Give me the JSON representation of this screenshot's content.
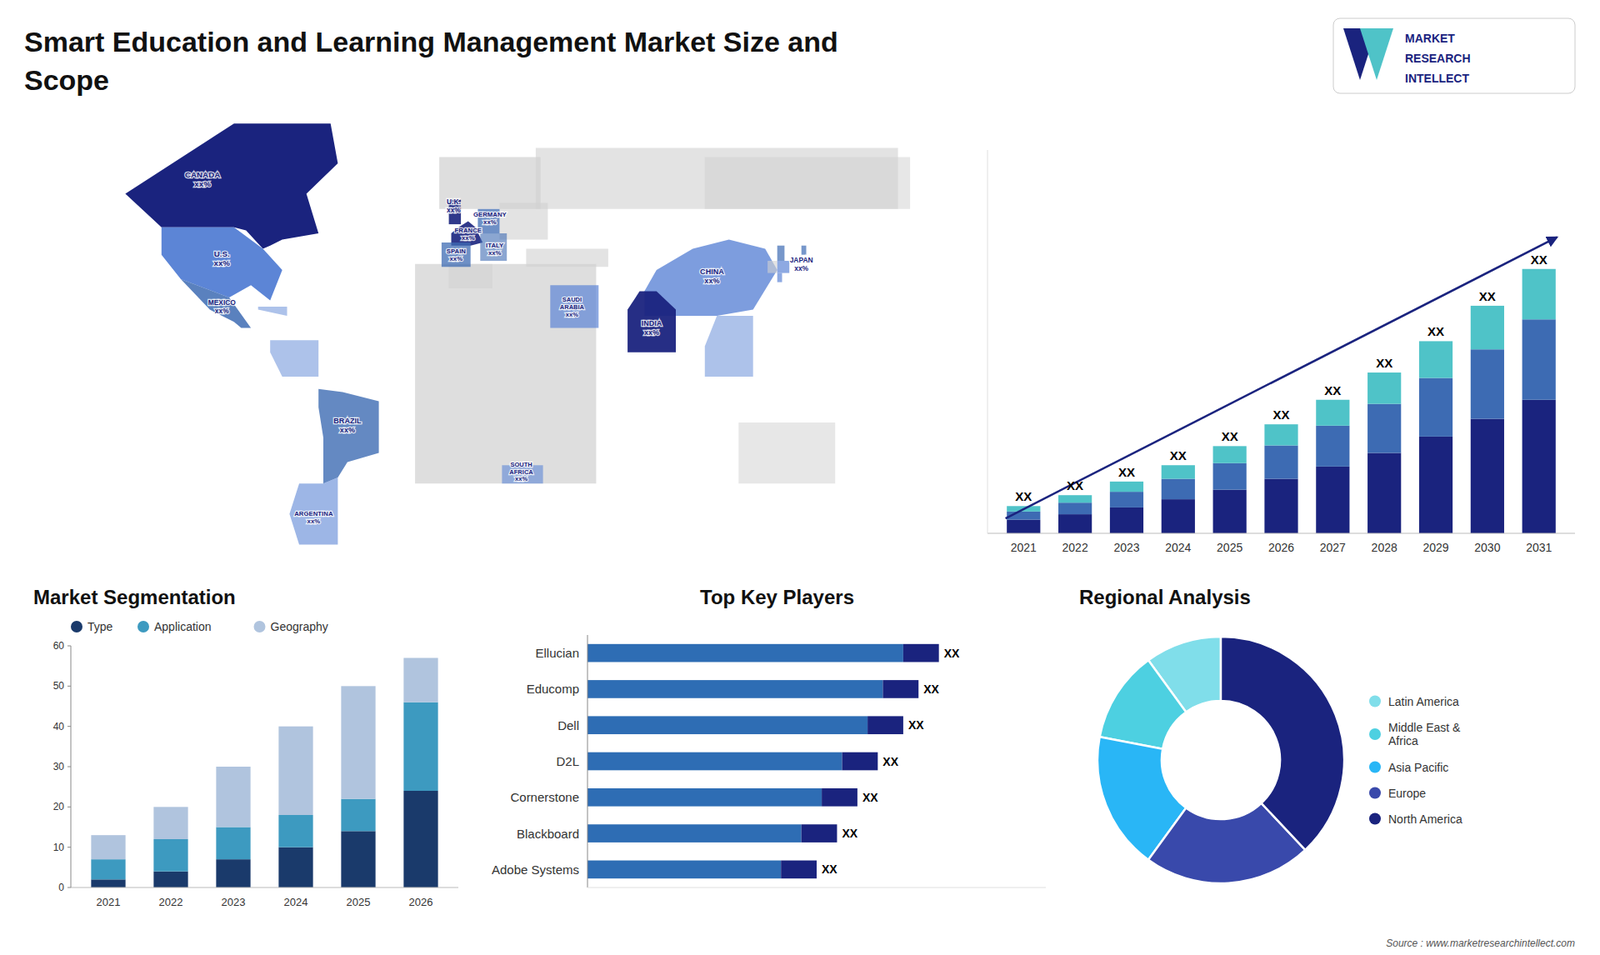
{
  "title": "Smart Education and Learning Management Market Size and\nScope",
  "annotations": [
    "MARKET",
    "RESEARCH",
    "INTELLECT",
    "Source : www.marketresearchintellect.com"
  ],
  "chart_data": [
    {
      "type": "map",
      "annotations": [
        "CANADA\nxx%",
        "U.S.\nxx%",
        "MEXICO\nxx%",
        "BRAZIL\nxx%",
        "ARGENTINA\nxx%",
        "U.K.\nxx%",
        "FRANCE\nxx%",
        "SPAIN\nxx%",
        "GERMANY\nxx%",
        "ITALY\nxx%",
        "SAUDI\nARABIA\nxx%",
        "SOUTH\nAFRICA\nxx%",
        "CHINA\nxx%",
        "INDIA\nxx%",
        "JAPAN\nxx%"
      ]
    },
    {
      "type": "bar",
      "stacked": true,
      "categories": [
        "2021",
        "2022",
        "2023",
        "2024",
        "2025",
        "2026",
        "2027",
        "2028",
        "2029",
        "2030",
        "2031"
      ],
      "series": [
        {
          "color": "#1a237e",
          "values": [
            1.0,
            1.4,
            1.9,
            2.5,
            3.2,
            4.0,
            4.9,
            5.9,
            7.1,
            8.4,
            9.8
          ]
        },
        {
          "color": "#3d6bb3",
          "values": [
            0.6,
            0.85,
            1.15,
            1.5,
            1.95,
            2.45,
            3.0,
            3.6,
            4.3,
            5.1,
            5.9
          ]
        },
        {
          "color": "#4fc3c8",
          "values": [
            0.4,
            0.55,
            0.75,
            1.0,
            1.25,
            1.55,
            1.9,
            2.3,
            2.7,
            3.2,
            3.7
          ]
        }
      ],
      "ylim": [
        0,
        28.13
      ],
      "tick_labels": "x",
      "grid": false,
      "annotations": [
        "XX",
        "XX",
        "XX",
        "XX",
        "XX",
        "XX",
        "XX",
        "XX",
        "XX",
        "XX",
        "XX"
      ]
    },
    {
      "type": "bar",
      "stacked": true,
      "title": "Market Segmentation",
      "categories": [
        "2021",
        "2022",
        "2023",
        "2024",
        "2025",
        "2026"
      ],
      "series": [
        {
          "name": "Type",
          "color": "#1a3a6b",
          "values": [
            2,
            4,
            7,
            10,
            14,
            24
          ]
        },
        {
          "name": "Application",
          "color": "#3d9ac0",
          "values": [
            5,
            8,
            8,
            8,
            8,
            22
          ]
        },
        {
          "name": "Geography",
          "color": "#b0c4de",
          "values": [
            6,
            8,
            15,
            22,
            28,
            11
          ]
        }
      ],
      "ylim": [
        0,
        60
      ],
      "yticks": [
        0,
        10,
        20,
        30,
        40,
        50,
        60
      ],
      "legend": "top",
      "grid": false
    },
    {
      "type": "bar",
      "orientation": "horizontal",
      "stacked": true,
      "title": "Top Key Players",
      "categories": [
        "Ellucian",
        "Educomp",
        "Dell",
        "D2L",
        "Cornerstone",
        "Blackboard",
        "Adobe Systems"
      ],
      "series": [
        {
          "color": "#2e6db4",
          "values": [
            0.62,
            0.58,
            0.55,
            0.5,
            0.46,
            0.42,
            0.38
          ]
        },
        {
          "color": "#1a237e",
          "values": [
            0.07,
            0.07,
            0.07,
            0.07,
            0.07,
            0.07,
            0.07
          ]
        }
      ],
      "xlim": [
        0,
        0.9
      ],
      "tick_labels": "y",
      "grid": false,
      "annotations": [
        "XX",
        "XX",
        "XX",
        "XX",
        "XX",
        "XX",
        "XX"
      ]
    },
    {
      "type": "donut",
      "title": "Regional Analysis",
      "categories": [
        "Latin America",
        "Middle East &\nAfrica",
        "Asia Pacific",
        "Europe",
        "North America"
      ],
      "values": [
        10,
        12,
        18,
        22,
        38
      ],
      "colors": [
        "#80deea",
        "#4dd0e1",
        "#29b6f6",
        "#3949ab",
        "#1a237e"
      ],
      "legend": "right"
    }
  ]
}
